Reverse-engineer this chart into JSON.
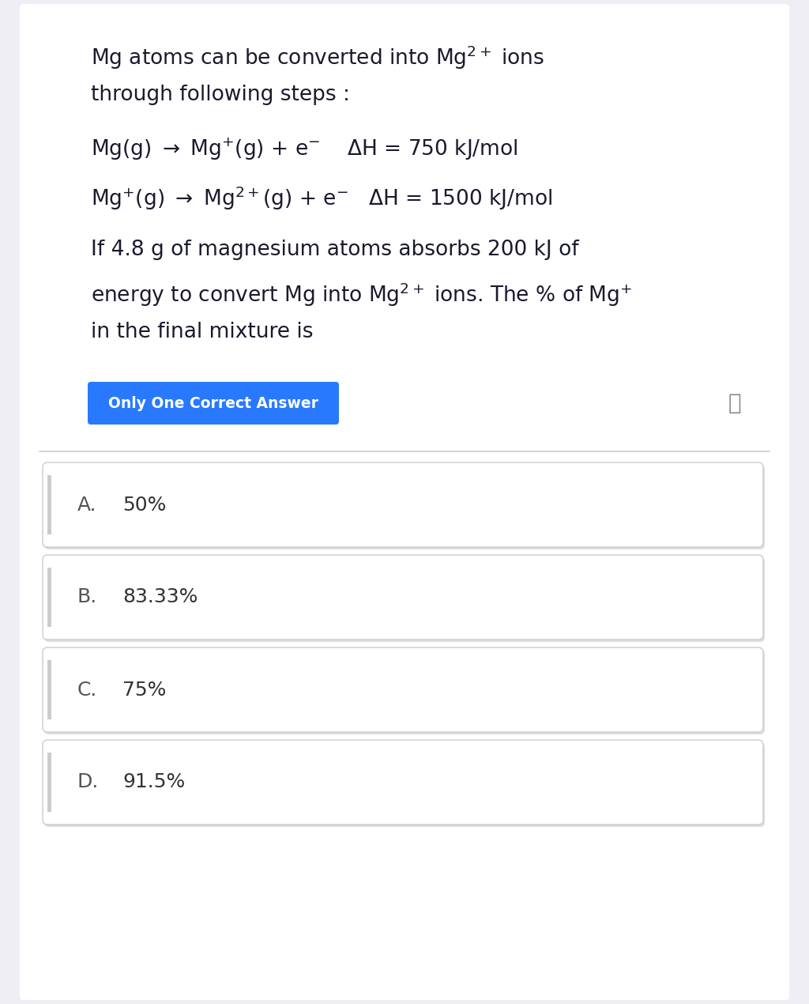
{
  "bg_color": "#eeeef4",
  "card_color": "#ffffff",
  "button_text": "Only One Correct Answer",
  "button_color": "#2979FF",
  "button_text_color": "#ffffff",
  "options": [
    {
      "label": "A.",
      "text": "50%"
    },
    {
      "label": "B.",
      "text": "83.33%"
    },
    {
      "label": "C.",
      "text": "75%"
    },
    {
      "label": "D.",
      "text": "91.5%"
    }
  ],
  "option_box_color": "#ffffff",
  "option_border_color": "#cccccc",
  "option_label_color": "#555555",
  "option_text_color": "#333333",
  "main_text_color": "#1a1a2e",
  "left_bar_color": "#cccccc",
  "sep_color": "#cccccc"
}
